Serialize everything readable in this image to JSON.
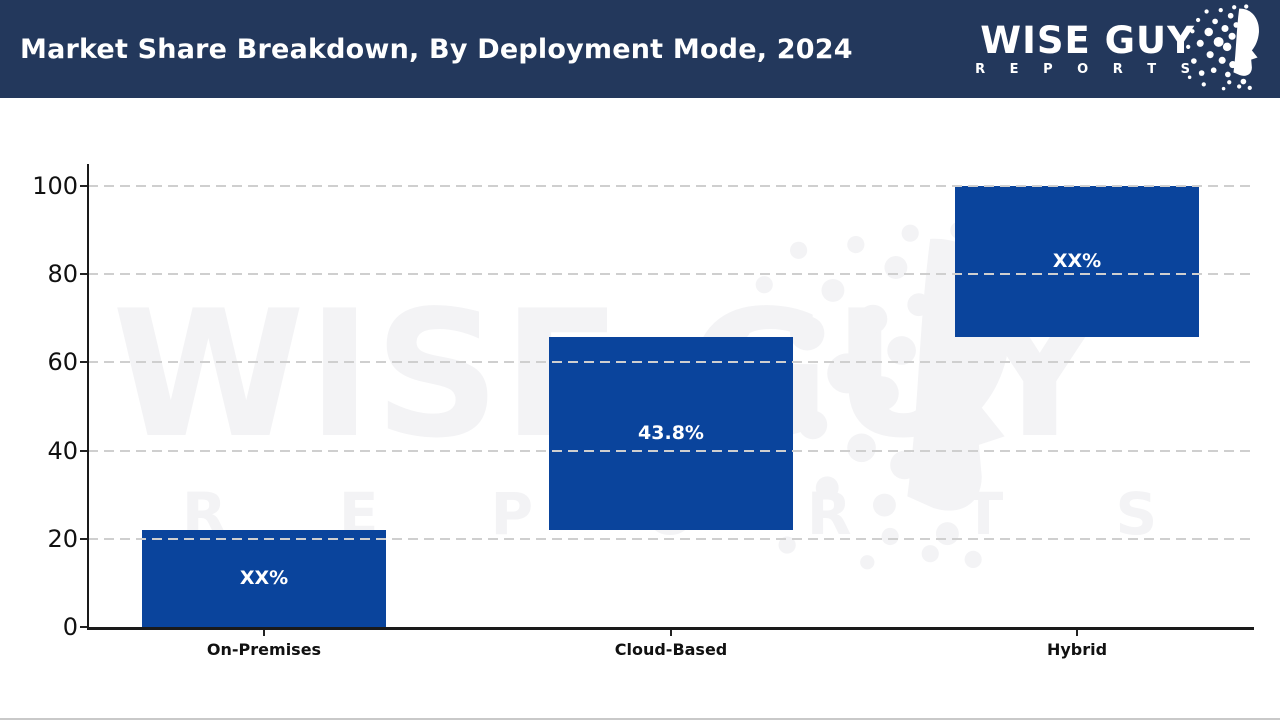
{
  "header": {
    "title": "Market Share Breakdown, By Deployment Mode, 2024",
    "bg_color": "#23385c",
    "title_color": "#ffffff",
    "logo": {
      "line1": "WISE GUY",
      "line2": "R E P O R T S",
      "color": "#ffffff"
    }
  },
  "watermark": {
    "line1": "WISE GUY",
    "line2": "R E P O R T S",
    "color": "#f3f3f5"
  },
  "chart_data": {
    "type": "bar",
    "subtype": "floating-waterfall",
    "title": "Market Share Breakdown, By Deployment Mode, 2024",
    "categories": [
      "On-Premises",
      "Cloud-Based",
      "Hybrid"
    ],
    "bars": [
      {
        "category": "On-Premises",
        "start": 0,
        "end": 22,
        "label": "XX%"
      },
      {
        "category": "Cloud-Based",
        "start": 22,
        "end": 65.8,
        "label": "43.8%"
      },
      {
        "category": "Hybrid",
        "start": 65.8,
        "end": 100,
        "label": "XX%"
      }
    ],
    "y_ticks": [
      0,
      20,
      40,
      60,
      80,
      100
    ],
    "ylim": [
      0,
      105
    ],
    "grid": "horizontal-dashed",
    "legend": "none",
    "bar_color": "#0a449c",
    "bar_label_color": "#ffffff",
    "gridline_color": "#cfcfcf",
    "axis_color": "#1a1a1a",
    "tick_label_color": "#111111"
  }
}
